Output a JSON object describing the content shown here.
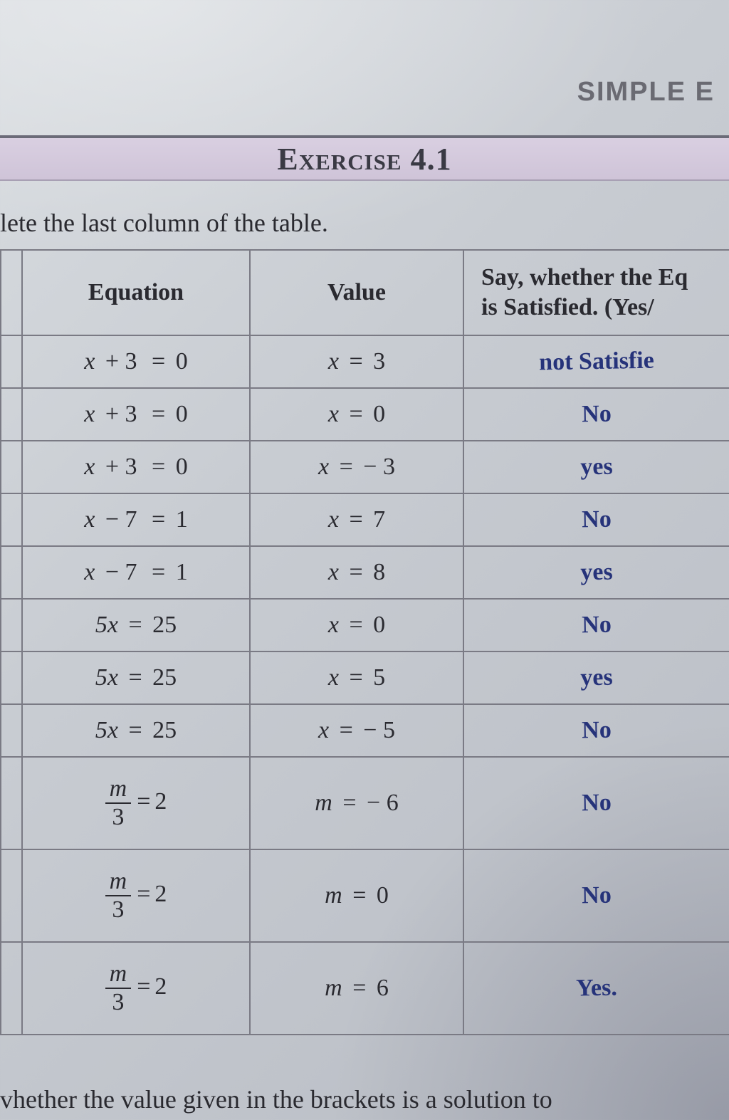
{
  "chapter_label": "SIMPLE E",
  "exercise_title": "Exercise 4.1",
  "intro_text": "lete the last column of the table.",
  "footer_text": "vhether the value given in the brackets is a solution to",
  "columns": {
    "c1": "Equation",
    "c2": "Value",
    "c3_line1": "Say, whether the Eq",
    "c3_line2": "is Satisfied. (Yes/"
  },
  "handwriting_color": "#26337a",
  "border_color": "#7a7a84",
  "banner_bg_top": "#d9cfe1",
  "banner_bg_bottom": "#cfc4d8",
  "rows": [
    {
      "eq_var": "x",
      "eq_lhs_extra": "+ 3",
      "eq_rhs": "0",
      "val_var": "x",
      "val_rhs": "3",
      "answer": "not Satisfie",
      "tall": false,
      "frac": false
    },
    {
      "eq_var": "x",
      "eq_lhs_extra": "+ 3",
      "eq_rhs": "0",
      "val_var": "x",
      "val_rhs": "0",
      "answer": "No",
      "tall": false,
      "frac": false
    },
    {
      "eq_var": "x",
      "eq_lhs_extra": "+ 3",
      "eq_rhs": "0",
      "val_var": "x",
      "val_rhs": "− 3",
      "answer": "yes",
      "tall": false,
      "frac": false
    },
    {
      "eq_var": "x",
      "eq_lhs_extra": "− 7",
      "eq_rhs": "1",
      "val_var": "x",
      "val_rhs": "7",
      "answer": "No",
      "tall": false,
      "frac": false
    },
    {
      "eq_var": "x",
      "eq_lhs_extra": "− 7",
      "eq_rhs": "1",
      "val_var": "x",
      "val_rhs": "8",
      "answer": "yes",
      "tall": false,
      "frac": false
    },
    {
      "eq_var": "5x",
      "eq_lhs_extra": "",
      "eq_rhs": "25",
      "val_var": "x",
      "val_rhs": "0",
      "answer": "No",
      "tall": false,
      "frac": false
    },
    {
      "eq_var": "5x",
      "eq_lhs_extra": "",
      "eq_rhs": "25",
      "val_var": "x",
      "val_rhs": "5",
      "answer": "yes",
      "tall": false,
      "frac": false
    },
    {
      "eq_var": "5x",
      "eq_lhs_extra": "",
      "eq_rhs": "25",
      "val_var": "x",
      "val_rhs": "− 5",
      "answer": "No",
      "tall": false,
      "frac": false
    },
    {
      "eq_num": "m",
      "eq_den": "3",
      "eq_rhs": "2",
      "val_var": "m",
      "val_rhs": "− 6",
      "answer": "No",
      "tall": true,
      "frac": true
    },
    {
      "eq_num": "m",
      "eq_den": "3",
      "eq_rhs": "2",
      "val_var": "m",
      "val_rhs": "0",
      "answer": "No",
      "tall": true,
      "frac": true
    },
    {
      "eq_num": "m",
      "eq_den": "3",
      "eq_rhs": "2",
      "val_var": "m",
      "val_rhs": "6",
      "answer": "Yes.",
      "tall": true,
      "frac": true
    }
  ]
}
